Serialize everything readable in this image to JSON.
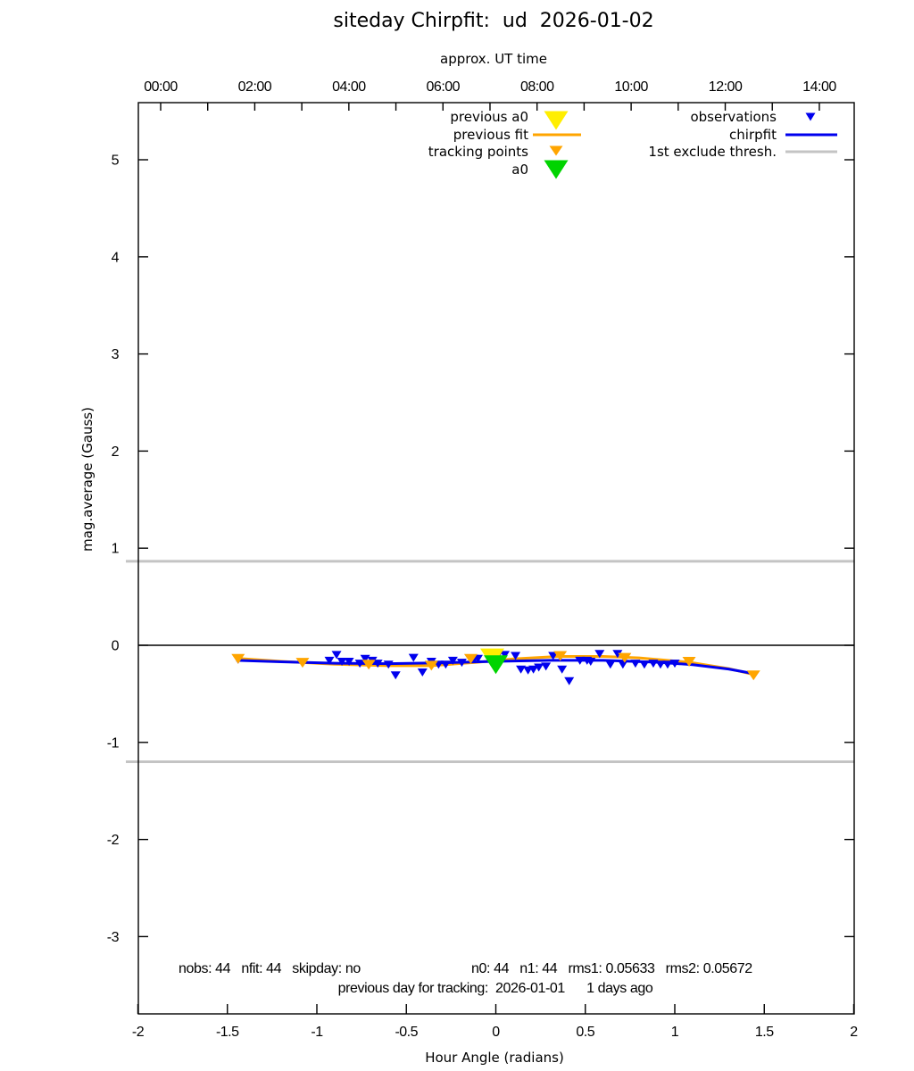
{
  "title": "siteday Chirpfit:  ud  2026-01-02",
  "stats": {
    "line1_left": "nobs: 44   nfit: 44   skipday: no",
    "line1_right": "n0: 44   n1: 44   rms1: 0.05633   rms2: 0.05672",
    "line2": "previous day for tracking:  2026-01-01      1 days ago"
  },
  "chart_data": {
    "type": "scatter",
    "title": "siteday Chirpfit:  ud  2026-01-02",
    "top_axis": {
      "label": "approx. UT time",
      "ticks": [
        "00:00",
        "02:00",
        "04:00",
        "06:00",
        "08:00",
        "10:00",
        "12:00",
        "14:00"
      ],
      "tick_hours": [
        0,
        1,
        2,
        3,
        4,
        5,
        6,
        7,
        8,
        9,
        10,
        11,
        12,
        13,
        14
      ]
    },
    "x_axis": {
      "label": "Hour Angle (radians)",
      "range": [
        -2,
        2
      ],
      "ticks": [
        {
          "value": -2,
          "label": "-2"
        },
        {
          "value": -1.5,
          "label": "-1.5"
        },
        {
          "value": -1,
          "label": "-1"
        },
        {
          "value": -0.5,
          "label": "-0.5"
        },
        {
          "value": 0,
          "label": "0"
        },
        {
          "value": 0.5,
          "label": "0.5"
        },
        {
          "value": 1,
          "label": "1"
        },
        {
          "value": 1.5,
          "label": "1.5"
        },
        {
          "value": 2,
          "label": "2"
        }
      ]
    },
    "y_axis": {
      "label": "mag.average (Gauss)",
      "range": [
        -3.8,
        5.6
      ],
      "ticks": [
        {
          "value": 5,
          "label": "5"
        },
        {
          "value": 4,
          "label": "4"
        },
        {
          "value": 3,
          "label": "3"
        },
        {
          "value": 2,
          "label": "2"
        },
        {
          "value": 1,
          "label": "1"
        },
        {
          "value": 0,
          "label": "0"
        },
        {
          "value": -1,
          "label": "-1"
        },
        {
          "value": -2,
          "label": "-2"
        },
        {
          "value": -3,
          "label": "-3"
        }
      ]
    },
    "colors": {
      "observations": "#0000ee",
      "chirpfit": "#0000ee",
      "previous_fit": "#ffa500",
      "tracking": "#ffa500",
      "previous_a0": "#ffee00",
      "a0": "#00d400",
      "threshold": "#c4c4c4",
      "zero_line": "#000000"
    },
    "legend": {
      "left": [
        {
          "label": "previous a0"
        },
        {
          "label": "previous fit"
        },
        {
          "label": "tracking points"
        },
        {
          "label": "a0"
        }
      ],
      "right": [
        {
          "label": "observations"
        },
        {
          "label": "chirpfit"
        },
        {
          "label": "1st exclude thresh."
        }
      ]
    },
    "series": {
      "observations": {
        "marker": "triangle-down-small",
        "points": [
          [
            -1.44,
            -0.15
          ],
          [
            -0.93,
            -0.16
          ],
          [
            -0.89,
            -0.1
          ],
          [
            -0.86,
            -0.17
          ],
          [
            -0.82,
            -0.17
          ],
          [
            -0.76,
            -0.19
          ],
          [
            -0.73,
            -0.14
          ],
          [
            -0.69,
            -0.16
          ],
          [
            -0.66,
            -0.19
          ],
          [
            -0.6,
            -0.2
          ],
          [
            -0.56,
            -0.31
          ],
          [
            -0.46,
            -0.13
          ],
          [
            -0.41,
            -0.28
          ],
          [
            -0.36,
            -0.17
          ],
          [
            -0.32,
            -0.2
          ],
          [
            -0.28,
            -0.2
          ],
          [
            -0.24,
            -0.16
          ],
          [
            -0.19,
            -0.18
          ],
          [
            -0.12,
            -0.14
          ],
          [
            -0.1,
            -0.14
          ],
          [
            0.01,
            -0.11
          ],
          [
            0.05,
            -0.1
          ],
          [
            0.11,
            -0.11
          ],
          [
            0.14,
            -0.25
          ],
          [
            0.18,
            -0.26
          ],
          [
            0.21,
            -0.25
          ],
          [
            0.24,
            -0.23
          ],
          [
            0.28,
            -0.22
          ],
          [
            0.32,
            -0.11
          ],
          [
            0.37,
            -0.25
          ],
          [
            0.41,
            -0.37
          ],
          [
            0.47,
            -0.16
          ],
          [
            0.51,
            -0.16
          ],
          [
            0.53,
            -0.17
          ],
          [
            0.58,
            -0.09
          ],
          [
            0.64,
            -0.2
          ],
          [
            0.68,
            -0.09
          ],
          [
            0.71,
            -0.2
          ],
          [
            0.78,
            -0.19
          ],
          [
            0.83,
            -0.2
          ],
          [
            0.88,
            -0.19
          ],
          [
            0.92,
            -0.2
          ],
          [
            0.96,
            -0.2
          ],
          [
            1.0,
            -0.19
          ]
        ]
      },
      "chirpfit": {
        "points": [
          [
            -1.45,
            -0.155
          ],
          [
            -1.2,
            -0.17
          ],
          [
            -0.9,
            -0.185
          ],
          [
            -0.6,
            -0.19
          ],
          [
            -0.3,
            -0.18
          ],
          [
            0,
            -0.165
          ],
          [
            0.3,
            -0.155
          ],
          [
            0.6,
            -0.155
          ],
          [
            0.9,
            -0.175
          ],
          [
            1.1,
            -0.2
          ],
          [
            1.3,
            -0.245
          ],
          [
            1.45,
            -0.295
          ]
        ]
      },
      "previous_fit": {
        "points": [
          [
            -1.44,
            -0.135
          ],
          [
            -1.2,
            -0.165
          ],
          [
            -0.9,
            -0.195
          ],
          [
            -0.6,
            -0.21
          ],
          [
            -0.36,
            -0.21
          ],
          [
            -0.1,
            -0.175
          ],
          [
            0.1,
            -0.14
          ],
          [
            0.35,
            -0.115
          ],
          [
            0.6,
            -0.115
          ],
          [
            0.8,
            -0.13
          ],
          [
            1.08,
            -0.175
          ],
          [
            1.3,
            -0.24
          ],
          [
            1.44,
            -0.3
          ]
        ]
      },
      "tracking_points": {
        "marker": "triangle-down-medium",
        "points": [
          [
            -1.44,
            -0.14
          ],
          [
            -1.08,
            -0.18
          ],
          [
            -0.71,
            -0.2
          ],
          [
            -0.36,
            -0.21
          ],
          [
            -0.14,
            -0.14
          ],
          [
            0.36,
            -0.11
          ],
          [
            0.72,
            -0.13
          ],
          [
            1.08,
            -0.17
          ],
          [
            1.44,
            -0.31
          ]
        ]
      },
      "previous_a0": {
        "marker": "triangle-down-large",
        "point": [
          -0.02,
          -0.13
        ]
      },
      "a0": {
        "marker": "triangle-down-large",
        "point": [
          0.0,
          -0.2
        ]
      },
      "exclude_thresholds": {
        "values": [
          0.865,
          -1.2
        ]
      }
    }
  }
}
